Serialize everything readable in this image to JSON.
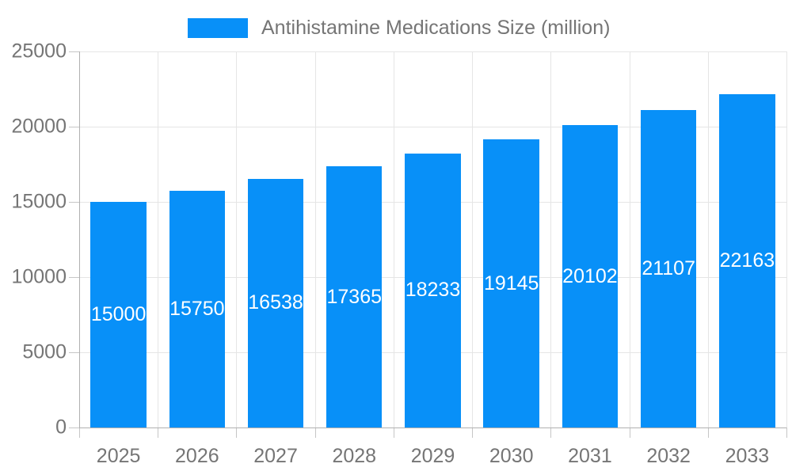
{
  "chart_data": {
    "type": "bar",
    "title": "Antihistamine Medications Size (million)",
    "legend": {
      "label": "Antihistamine Medications Size (million)",
      "position": "top"
    },
    "categories": [
      "2025",
      "2026",
      "2027",
      "2028",
      "2029",
      "2030",
      "2031",
      "2032",
      "2033"
    ],
    "values": [
      15000,
      15750,
      16538,
      17365,
      18233,
      19145,
      20102,
      21107,
      22163
    ],
    "xlabel": "",
    "ylabel": "",
    "ylim": [
      0,
      25000
    ],
    "yticks": [
      0,
      5000,
      10000,
      15000,
      20000,
      25000
    ],
    "grid": true,
    "bar_labels_inside": true,
    "colors": {
      "bar": "#0890f8",
      "gridline": "#e5e5e5",
      "axis": "#b0b0b0",
      "tick": "#c6c6c6",
      "text": "#757575",
      "bar_label": "#ffffff"
    }
  }
}
